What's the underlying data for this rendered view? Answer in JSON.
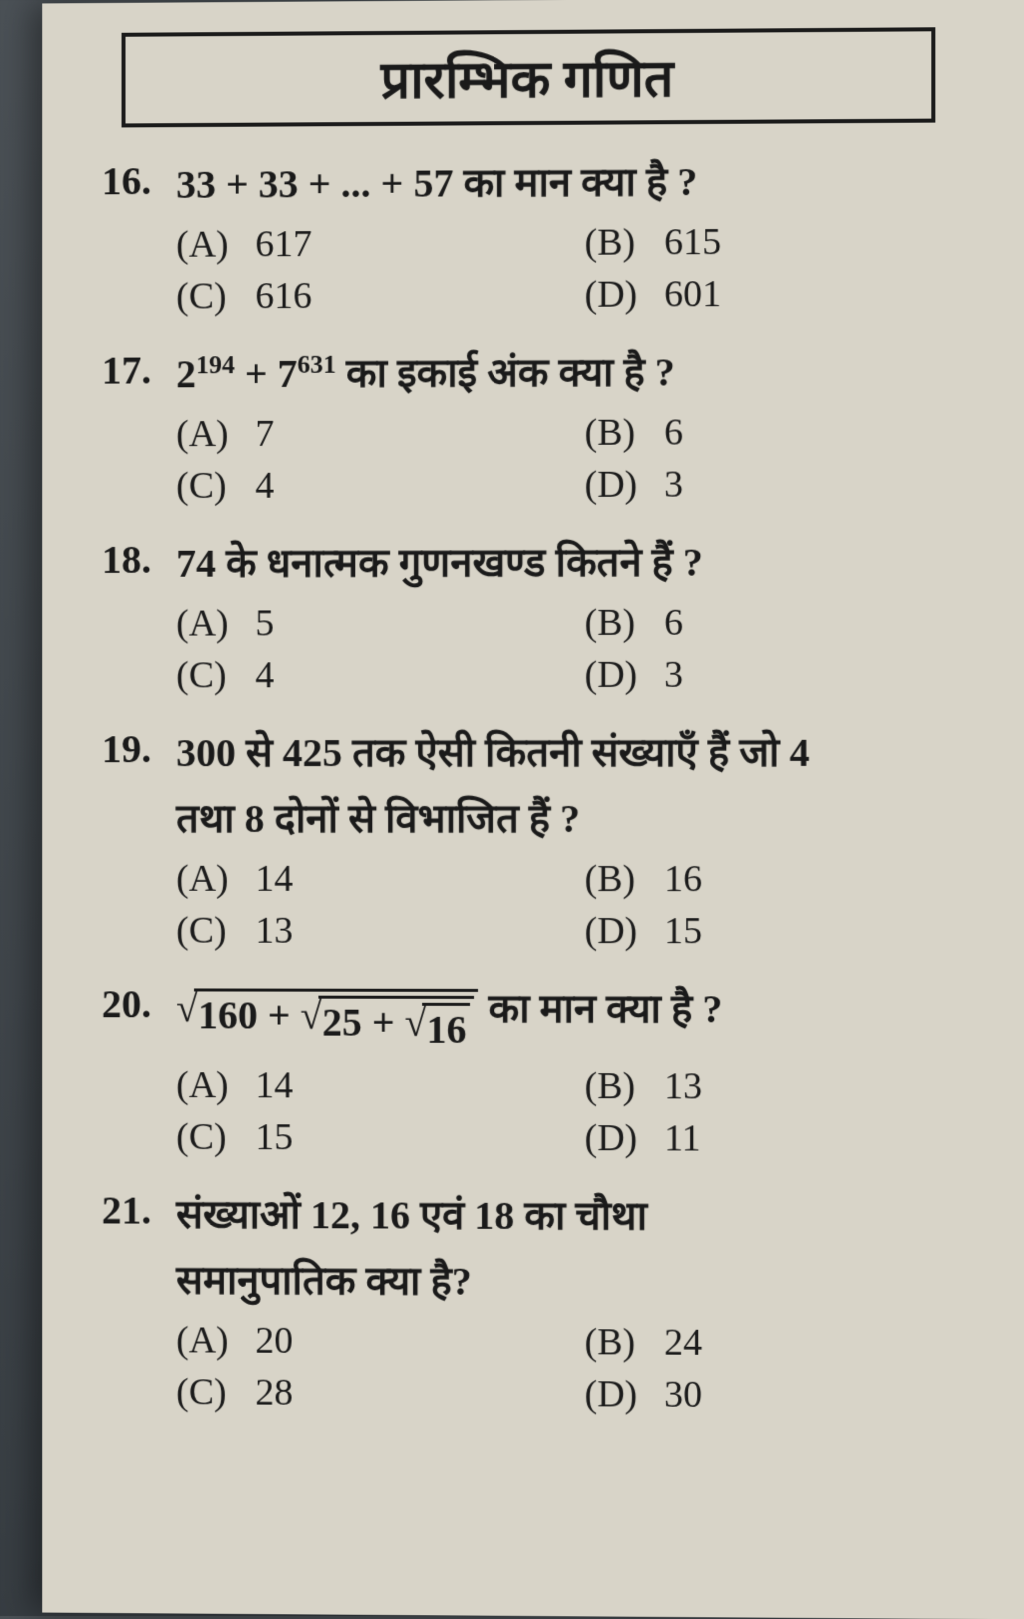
{
  "page": {
    "title": "प्रारम्भिक गणित",
    "background_color": "#d8d4c8",
    "text_color": "#1a1a1a",
    "title_fontsize": 52,
    "question_fontsize": 40,
    "option_fontsize": 38
  },
  "questions": [
    {
      "number": "16.",
      "text": "33 + 33 + ... + 57 का मान क्या है ?",
      "options": {
        "A": "617",
        "B": "615",
        "C": "616",
        "D": "601"
      }
    },
    {
      "number": "17.",
      "text_html": "2<sup>194</sup> + 7<sup>631</sup> का इकाई अंक क्या है ?",
      "base1": "2",
      "exp1": "194",
      "base2": "7",
      "exp2": "631",
      "text_suffix": " का इकाई अंक क्या है ?",
      "options": {
        "A": "7",
        "B": "6",
        "C": "4",
        "D": "3"
      }
    },
    {
      "number": "18.",
      "text": "74 के धनात्मक गुणनखण्ड कितने हैं ?",
      "options": {
        "A": "5",
        "B": "6",
        "C": "4",
        "D": "3"
      }
    },
    {
      "number": "19.",
      "text": "300 से 425 तक ऐसी कितनी संख्याएँ हैं जो 4",
      "text_line2": "तथा 8 दोनों से विभाजित हैं ?",
      "options": {
        "A": "14",
        "B": "16",
        "C": "13",
        "D": "15"
      }
    },
    {
      "number": "20.",
      "sqrt_outer": "160 +",
      "sqrt_mid": "25 +",
      "sqrt_inner": "16",
      "text_suffix": " का मान क्या है ?",
      "options": {
        "A": "14",
        "B": "13",
        "C": "15",
        "D": "11"
      }
    },
    {
      "number": "21.",
      "text": "संख्याओं 12, 16 एवं 18 का चौथा",
      "text_line2": "समानुपातिक क्या है?",
      "options": {
        "A": "20",
        "B": "24",
        "C": "28",
        "D": "30"
      }
    }
  ]
}
